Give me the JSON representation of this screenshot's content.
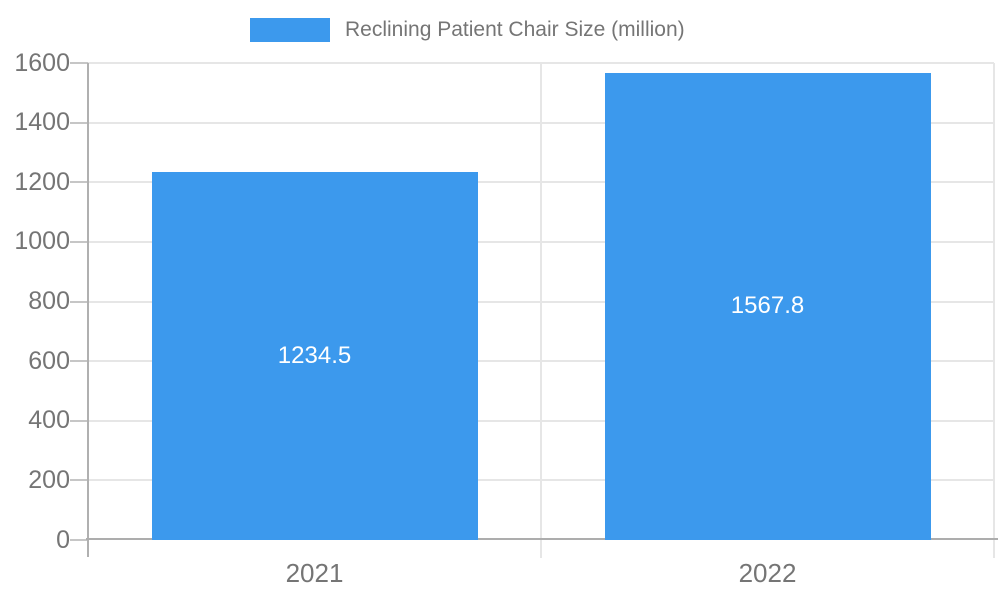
{
  "legend": {
    "label": "Reclining Patient Chair Size (million)"
  },
  "colors": {
    "bar": "#3C99ED",
    "axis": "#adadad",
    "grid": "#e6e6e6",
    "tick_text": "#757575",
    "bar_label_text": "#ffffff"
  },
  "chart_data": {
    "type": "bar",
    "title": "Reclining Patient Chair Size (million)",
    "categories": [
      "2021",
      "2022"
    ],
    "series": [
      {
        "name": "Reclining Patient Chair Size (million)",
        "values": [
          1234.5,
          1567.8
        ]
      }
    ],
    "value_labels": [
      "1234.5",
      "1567.8"
    ],
    "xlabel": "",
    "ylabel": "",
    "ylim": [
      0,
      1600
    ],
    "yticks": [
      0,
      200,
      400,
      600,
      800,
      1000,
      1200,
      1400,
      1600
    ],
    "grid": true,
    "legend_position": "top",
    "bar_color": "#3C99ED",
    "value_label_position": "center"
  }
}
